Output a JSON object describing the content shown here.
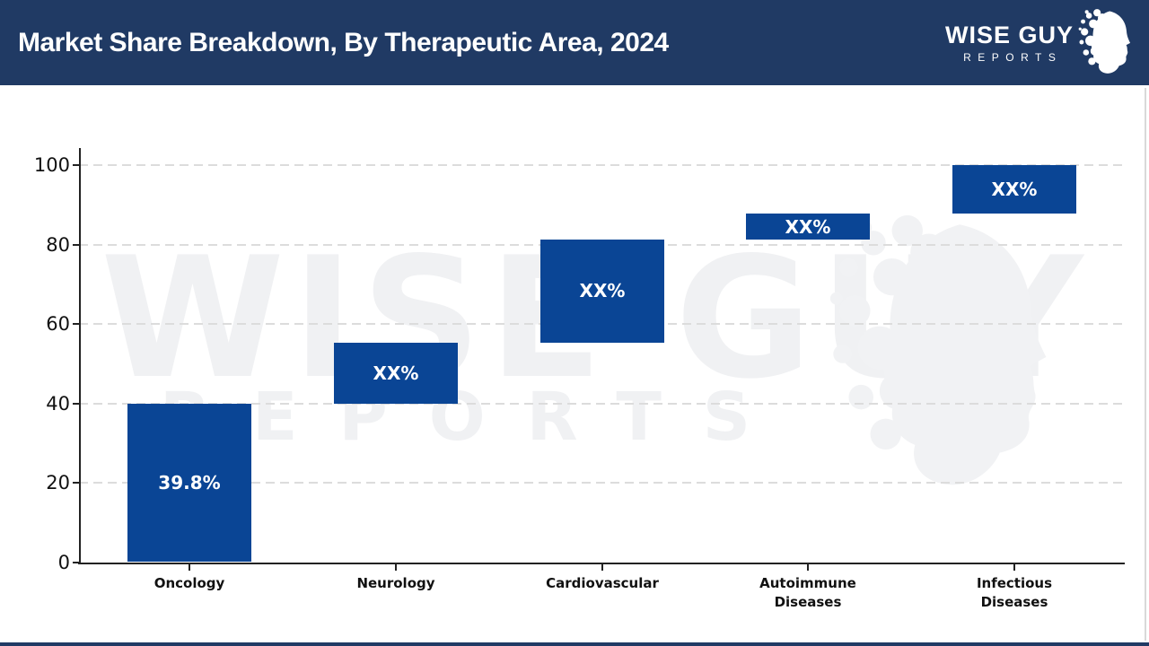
{
  "header": {
    "title": "Market Share Breakdown, By Therapeutic Area, 2024",
    "logo": {
      "name": "WISE GUY",
      "sub": "REPORTS"
    }
  },
  "watermark": {
    "line1": "WISE GUY",
    "line2": "REPORTS"
  },
  "colors": {
    "header_bg": "#203a64",
    "bar": "#0a4595",
    "grid": "#dcdcdc",
    "axis": "#222222",
    "watermark_text": "#f0f1f3",
    "bar_label": "#ffffff"
  },
  "chart_data": {
    "type": "bar",
    "subtype": "waterfall",
    "title": "Market Share Breakdown, By Therapeutic Area, 2024",
    "categories": [
      "Oncology",
      "Neurology",
      "Cardiovascular",
      "Autoimmune Diseases",
      "Infectious Diseases"
    ],
    "tick_labels": [
      "Oncology",
      "Neurology",
      "Cardiovascular",
      "Autoimmune\nDiseases",
      "Infectious\nDiseases"
    ],
    "segments": [
      {
        "category": "Oncology",
        "start": 0,
        "end": 39.8,
        "label": "39.8%"
      },
      {
        "category": "Neurology",
        "start": 39.8,
        "end": 55.2,
        "label": "XX%"
      },
      {
        "category": "Cardiovascular",
        "start": 55.2,
        "end": 81.3,
        "label": "XX%"
      },
      {
        "category": "Autoimmune Diseases",
        "start": 81.3,
        "end": 87.7,
        "label": "XX%"
      },
      {
        "category": "Infectious Diseases",
        "start": 87.7,
        "end": 100,
        "label": "XX%"
      }
    ],
    "ylim": [
      0,
      100
    ],
    "yticks": [
      0,
      20,
      40,
      60,
      80,
      100
    ],
    "grid": true,
    "legend": null
  }
}
